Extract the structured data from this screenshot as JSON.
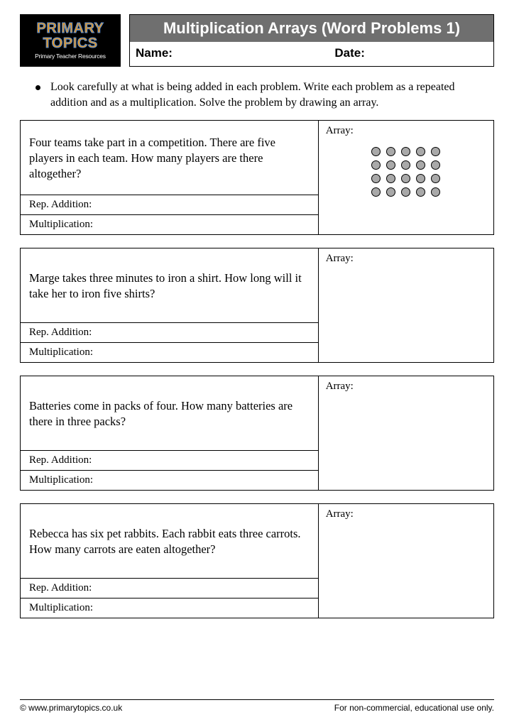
{
  "logo": {
    "line1": "PRIMARY",
    "line2": "TOPICS",
    "sub": "Primary Teacher Resources"
  },
  "title": "Multiplication Arrays (Word Problems 1)",
  "name_label": "Name:",
  "date_label": "Date:",
  "instruction": "Look carefully at what is being added in each problem. Write each problem as a repeated addition and as a multiplication. Solve the problem by drawing an array.",
  "row_labels": {
    "rep_addition": "Rep. Addition:",
    "multiplication": "Multiplication:",
    "array": "Array:"
  },
  "problems": [
    {
      "question": "Four teams take part in a competition. There are five players in each team. How many players are there altogether?",
      "array": {
        "rows": 4,
        "cols": 5,
        "dot_fill": "#a9a9a9",
        "dot_border": "#000000"
      }
    },
    {
      "question": "Marge takes three minutes to iron a shirt. How long will it take her to iron five shirts?",
      "array": null
    },
    {
      "question": "Batteries come in packs of four. How many batteries are there in three packs?",
      "array": null
    },
    {
      "question": "Rebecca has six pet rabbits. Each rabbit eats three carrots. How many carrots are eaten altogether?",
      "array": null
    }
  ],
  "footer": {
    "left": "© www.primarytopics.co.uk",
    "right": "For non-commercial, educational use only."
  },
  "colors": {
    "title_bg": "#6f6f6f",
    "title_fg": "#ffffff",
    "page_bg": "#ffffff",
    "border": "#000000"
  }
}
